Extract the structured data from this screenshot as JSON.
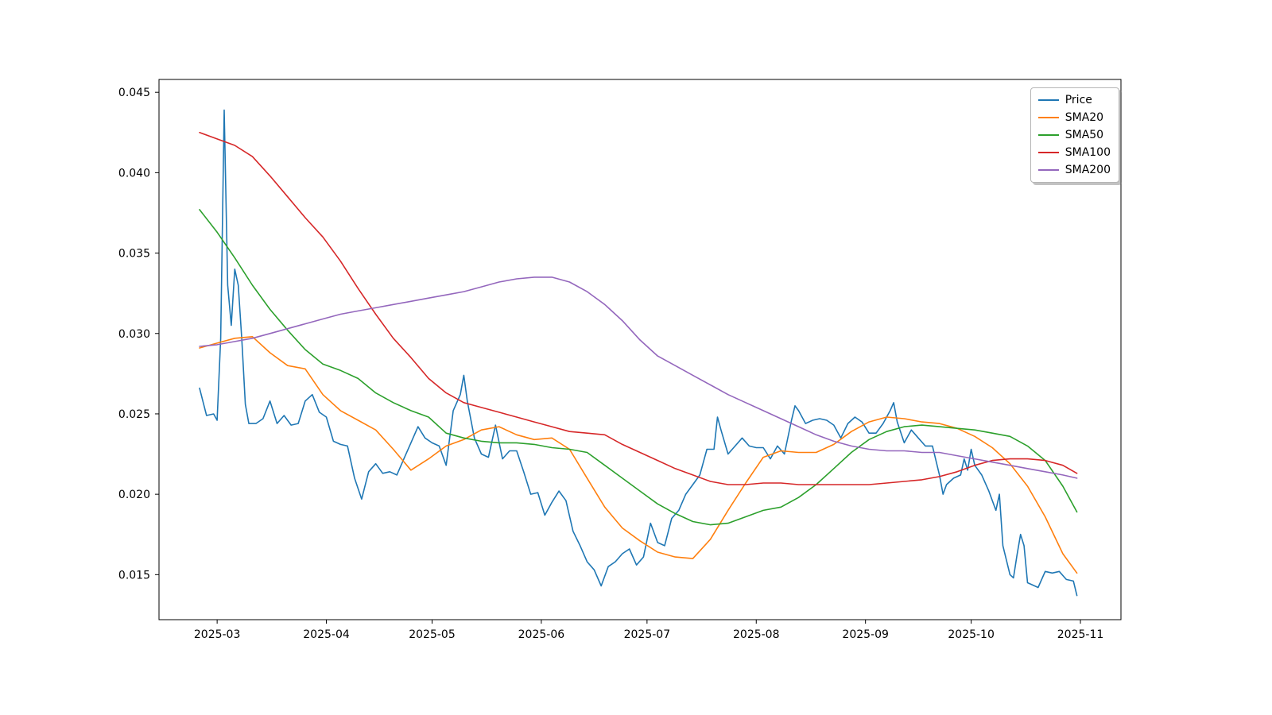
{
  "figure": {
    "background": "#ffffff",
    "axes_edge_color": "#000000",
    "tick_color": "#000000"
  },
  "chart_data": {
    "type": "line",
    "title": "",
    "xlabel": "",
    "ylabel": "",
    "grid": false,
    "legend_position": "upper right",
    "x_unit": "days",
    "xlim": [
      -7.5,
      265.5
    ],
    "ylim": [
      0.0122,
      0.0458
    ],
    "x_ticks": {
      "positions": [
        9,
        40,
        70,
        101,
        131,
        162,
        193,
        223,
        254
      ],
      "labels": [
        "2025-03",
        "2025-04",
        "2025-05",
        "2025-06",
        "2025-07",
        "2025-08",
        "2025-09",
        "2025-10",
        "2025-11"
      ]
    },
    "y_ticks": {
      "values": [
        0.015,
        0.02,
        0.025,
        0.03,
        0.035,
        0.04,
        0.045
      ],
      "labels": [
        "0.015",
        "0.020",
        "0.025",
        "0.030",
        "0.035",
        "0.040",
        "0.045"
      ]
    },
    "series": [
      {
        "name": "Price",
        "color": "#1f77b4",
        "x": [
          4,
          6,
          8,
          9,
          10,
          11,
          12,
          13,
          14,
          15,
          16,
          17,
          18,
          20,
          22,
          24,
          26,
          28,
          30,
          32,
          34,
          36,
          38,
          40,
          42,
          44,
          46,
          48,
          50,
          52,
          54,
          56,
          58,
          60,
          62,
          64,
          66,
          68,
          70,
          72,
          74,
          76,
          78,
          79,
          80,
          82,
          84,
          86,
          88,
          90,
          92,
          94,
          96,
          98,
          100,
          102,
          104,
          106,
          108,
          110,
          112,
          114,
          116,
          118,
          120,
          122,
          124,
          126,
          128,
          130,
          132,
          134,
          136,
          138,
          140,
          142,
          144,
          146,
          148,
          150,
          151,
          152,
          154,
          156,
          158,
          160,
          162,
          164,
          166,
          168,
          170,
          172,
          173,
          174,
          176,
          178,
          180,
          182,
          184,
          186,
          188,
          190,
          192,
          194,
          196,
          198,
          200,
          201,
          202,
          204,
          206,
          208,
          210,
          212,
          214,
          215,
          216,
          218,
          220,
          221,
          222,
          223,
          224,
          226,
          228,
          230,
          231,
          232,
          234,
          235,
          236,
          237,
          238,
          239,
          240,
          242,
          244,
          246,
          248,
          250,
          252,
          253
        ],
        "y": [
          0.0266,
          0.0249,
          0.025,
          0.0246,
          0.0297,
          0.0439,
          0.033,
          0.0305,
          0.034,
          0.033,
          0.0296,
          0.0256,
          0.0244,
          0.0244,
          0.0247,
          0.0258,
          0.0244,
          0.0249,
          0.0243,
          0.0244,
          0.0258,
          0.0262,
          0.0251,
          0.0248,
          0.0233,
          0.0231,
          0.023,
          0.021,
          0.0197,
          0.0214,
          0.0219,
          0.0213,
          0.0214,
          0.0212,
          0.0222,
          0.0232,
          0.0242,
          0.0235,
          0.0232,
          0.023,
          0.0218,
          0.0252,
          0.0262,
          0.0274,
          0.0258,
          0.0235,
          0.0225,
          0.0223,
          0.0243,
          0.0222,
          0.0227,
          0.0227,
          0.0214,
          0.02,
          0.0201,
          0.0187,
          0.0195,
          0.0202,
          0.0196,
          0.0177,
          0.0168,
          0.0158,
          0.0153,
          0.0143,
          0.0155,
          0.0158,
          0.0163,
          0.0166,
          0.0156,
          0.0161,
          0.0182,
          0.017,
          0.0168,
          0.0185,
          0.019,
          0.02,
          0.0206,
          0.0212,
          0.0228,
          0.0228,
          0.0248,
          0.024,
          0.0225,
          0.023,
          0.0235,
          0.023,
          0.0229,
          0.0229,
          0.0222,
          0.023,
          0.0225,
          0.0246,
          0.0255,
          0.0252,
          0.0244,
          0.0246,
          0.0247,
          0.0246,
          0.0243,
          0.0235,
          0.0244,
          0.0248,
          0.0245,
          0.0238,
          0.0238,
          0.0244,
          0.0252,
          0.0257,
          0.0245,
          0.0232,
          0.024,
          0.0235,
          0.023,
          0.023,
          0.0212,
          0.02,
          0.0206,
          0.021,
          0.0212,
          0.0222,
          0.0215,
          0.0228,
          0.0218,
          0.0212,
          0.0202,
          0.019,
          0.02,
          0.0168,
          0.015,
          0.0148,
          0.0162,
          0.0175,
          0.0168,
          0.0145,
          0.0144,
          0.0142,
          0.0152,
          0.0151,
          0.0152,
          0.0147,
          0.0146,
          0.0137
        ]
      },
      {
        "name": "SMA20",
        "color": "#ff7f0e",
        "x": [
          4,
          9,
          14,
          19,
          24,
          29,
          34,
          39,
          44,
          49,
          54,
          59,
          64,
          69,
          74,
          79,
          84,
          89,
          94,
          99,
          104,
          109,
          114,
          119,
          124,
          129,
          134,
          139,
          144,
          149,
          154,
          159,
          164,
          169,
          174,
          179,
          184,
          189,
          194,
          199,
          204,
          209,
          214,
          219,
          224,
          229,
          234,
          239,
          244,
          249,
          253
        ],
        "y": [
          0.0291,
          0.0294,
          0.0297,
          0.0298,
          0.0288,
          0.028,
          0.0278,
          0.0262,
          0.0252,
          0.0246,
          0.024,
          0.0228,
          0.0215,
          0.0222,
          0.023,
          0.0234,
          0.024,
          0.0242,
          0.0237,
          0.0234,
          0.0235,
          0.0228,
          0.021,
          0.0192,
          0.0179,
          0.0171,
          0.0164,
          0.0161,
          0.016,
          0.0172,
          0.019,
          0.0207,
          0.0223,
          0.0227,
          0.0226,
          0.0226,
          0.0231,
          0.0239,
          0.0245,
          0.0248,
          0.0247,
          0.0245,
          0.0244,
          0.0241,
          0.0236,
          0.0229,
          0.0219,
          0.0205,
          0.0186,
          0.0163,
          0.0151
        ]
      },
      {
        "name": "SMA50",
        "color": "#2ca02c",
        "x": [
          4,
          9,
          14,
          19,
          24,
          29,
          34,
          39,
          44,
          49,
          54,
          59,
          64,
          69,
          74,
          79,
          84,
          89,
          94,
          99,
          104,
          109,
          114,
          119,
          124,
          129,
          134,
          139,
          144,
          149,
          154,
          159,
          164,
          169,
          174,
          179,
          184,
          189,
          194,
          199,
          204,
          209,
          214,
          219,
          224,
          229,
          234,
          239,
          244,
          249,
          253
        ],
        "y": [
          0.0377,
          0.0363,
          0.0347,
          0.033,
          0.0315,
          0.0302,
          0.029,
          0.0281,
          0.0277,
          0.0272,
          0.0263,
          0.0257,
          0.0252,
          0.0248,
          0.0238,
          0.0235,
          0.0233,
          0.0232,
          0.0232,
          0.0231,
          0.0229,
          0.0228,
          0.0226,
          0.0218,
          0.021,
          0.0202,
          0.0194,
          0.0188,
          0.0183,
          0.0181,
          0.0182,
          0.0186,
          0.019,
          0.0192,
          0.0198,
          0.0206,
          0.0216,
          0.0226,
          0.0234,
          0.0239,
          0.0242,
          0.0243,
          0.0242,
          0.0241,
          0.024,
          0.0238,
          0.0236,
          0.023,
          0.0221,
          0.0205,
          0.0189
        ]
      },
      {
        "name": "SMA100",
        "color": "#d62728",
        "x": [
          4,
          9,
          14,
          19,
          24,
          29,
          34,
          39,
          44,
          49,
          54,
          59,
          64,
          69,
          74,
          79,
          84,
          89,
          94,
          99,
          104,
          109,
          114,
          119,
          124,
          129,
          134,
          139,
          144,
          149,
          154,
          159,
          164,
          169,
          174,
          179,
          184,
          189,
          194,
          199,
          204,
          209,
          214,
          219,
          224,
          229,
          234,
          239,
          244,
          249,
          253
        ],
        "y": [
          0.0425,
          0.0421,
          0.0417,
          0.041,
          0.0398,
          0.0385,
          0.0372,
          0.036,
          0.0345,
          0.0328,
          0.0312,
          0.0297,
          0.0285,
          0.0272,
          0.0263,
          0.0257,
          0.0254,
          0.0251,
          0.0248,
          0.0245,
          0.0242,
          0.0239,
          0.0238,
          0.0237,
          0.0231,
          0.0226,
          0.0221,
          0.0216,
          0.0212,
          0.0208,
          0.0206,
          0.0206,
          0.0207,
          0.0207,
          0.0206,
          0.0206,
          0.0206,
          0.0206,
          0.0206,
          0.0207,
          0.0208,
          0.0209,
          0.0211,
          0.0214,
          0.0218,
          0.0221,
          0.0222,
          0.0222,
          0.0221,
          0.0218,
          0.0213
        ]
      },
      {
        "name": "SMA200",
        "color": "#9467bd",
        "x": [
          4,
          9,
          14,
          19,
          24,
          29,
          34,
          39,
          44,
          49,
          54,
          59,
          64,
          69,
          74,
          79,
          84,
          89,
          94,
          99,
          104,
          109,
          114,
          119,
          124,
          129,
          134,
          139,
          144,
          149,
          154,
          159,
          164,
          169,
          174,
          179,
          184,
          189,
          194,
          199,
          204,
          209,
          214,
          219,
          224,
          229,
          234,
          239,
          244,
          249,
          253
        ],
        "y": [
          0.0292,
          0.0293,
          0.0295,
          0.0297,
          0.03,
          0.0303,
          0.0306,
          0.0309,
          0.0312,
          0.0314,
          0.0316,
          0.0318,
          0.032,
          0.0322,
          0.0324,
          0.0326,
          0.0329,
          0.0332,
          0.0334,
          0.0335,
          0.0335,
          0.0332,
          0.0326,
          0.0318,
          0.0308,
          0.0296,
          0.0286,
          0.028,
          0.0274,
          0.0268,
          0.0262,
          0.0257,
          0.0252,
          0.0247,
          0.0242,
          0.0237,
          0.0233,
          0.023,
          0.0228,
          0.0227,
          0.0227,
          0.0226,
          0.0226,
          0.0224,
          0.0222,
          0.022,
          0.0218,
          0.0216,
          0.0214,
          0.0212,
          0.021
        ]
      }
    ]
  }
}
